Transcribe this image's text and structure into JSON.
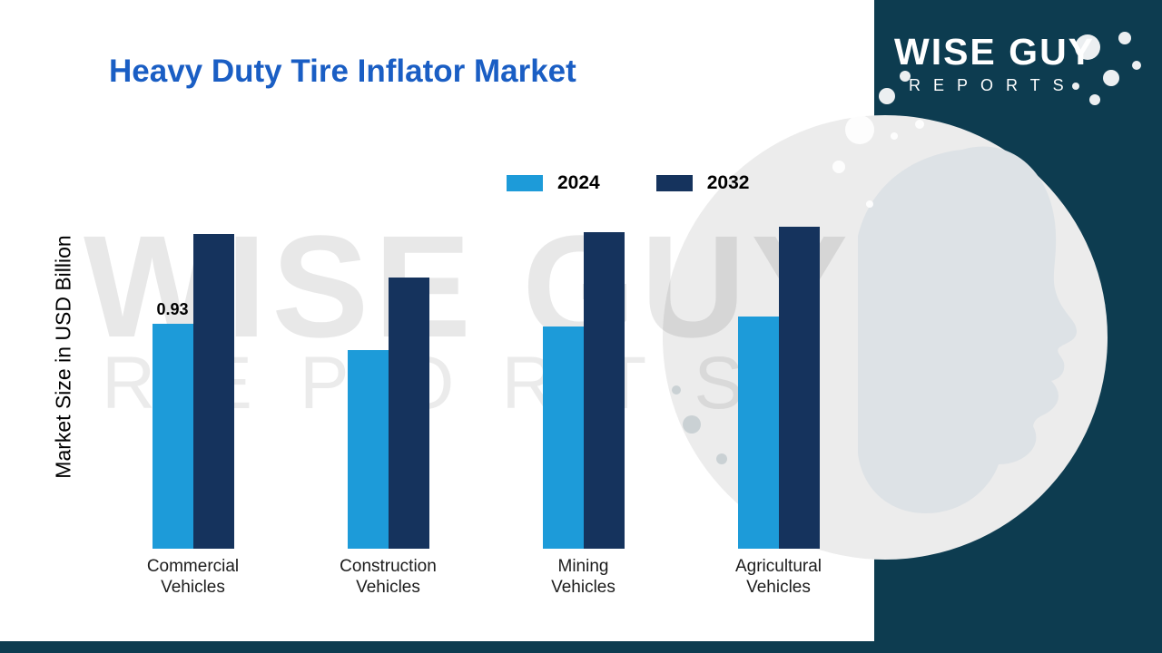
{
  "branding": {
    "logo_line1": "WISE GUY",
    "logo_line2": "REPORTS",
    "watermark_line1": "WISE GUY",
    "watermark_line2": "REPORTS"
  },
  "colors": {
    "title_blue": "#1a5ec4",
    "panel_teal": "#0d3c50",
    "circle_gray": "#ececec",
    "face_gray": "#dde2e6",
    "series_2024": "#1d9bd9",
    "series_2032": "#15335d"
  },
  "chart_data": {
    "type": "bar",
    "title": "Heavy Duty Tire Inflator Market",
    "xlabel": "",
    "ylabel": "Market Size in USD Billion",
    "categories": [
      "Commercial Vehicles",
      "Construction Vehicles",
      "Mining Vehicles",
      "Agricultural Vehicles"
    ],
    "series": [
      {
        "name": "2024",
        "color": "#1d9bd9",
        "values": [
          0.93,
          0.82,
          0.92,
          0.96
        ],
        "labels": [
          "0.93",
          null,
          null,
          null
        ]
      },
      {
        "name": "2032",
        "color": "#15335d",
        "values": [
          1.3,
          1.12,
          1.31,
          1.33
        ],
        "labels": [
          null,
          null,
          null,
          null
        ]
      }
    ],
    "ylim": [
      0,
      1.5
    ],
    "grid": false,
    "legend_position": "top"
  }
}
